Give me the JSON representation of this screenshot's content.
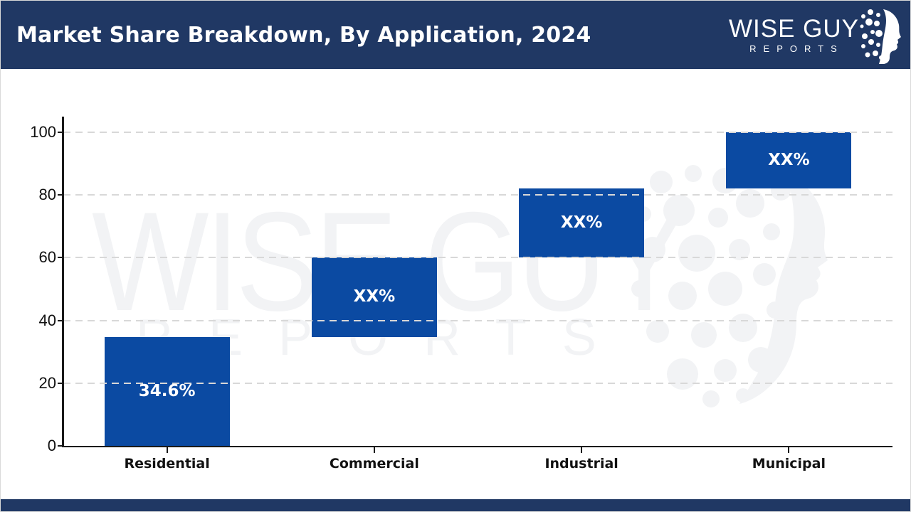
{
  "header": {
    "title": "Market Share Breakdown, By Application, 2024",
    "bg_color": "#203864",
    "logo": {
      "line1": "WISE GUY",
      "line2": "REPORTS"
    }
  },
  "watermark": {
    "line1": "WISE GUY",
    "line2": "REPORTS"
  },
  "chart_data": {
    "type": "bar",
    "subtype": "waterfall",
    "title": "Market Share Breakdown, By Application, 2024",
    "categories": [
      "Residential",
      "Commercial",
      "Industrial",
      "Municipal"
    ],
    "series": [
      {
        "name": "Market Share",
        "segments": [
          {
            "category": "Residential",
            "start": 0,
            "end": 34.6,
            "label": "34.6%"
          },
          {
            "category": "Commercial",
            "start": 34.6,
            "end": 60,
            "label": "XX%"
          },
          {
            "category": "Industrial",
            "start": 60,
            "end": 82,
            "label": "XX%"
          },
          {
            "category": "Municipal",
            "start": 82,
            "end": 100,
            "label": "XX%"
          }
        ]
      }
    ],
    "yticks": [
      0,
      20,
      40,
      60,
      80,
      100
    ],
    "ylim": [
      0,
      105
    ],
    "xlabel": "",
    "ylabel": "",
    "grid": "dashed-horizontal",
    "legend": "none",
    "bar_color": "#0b4aa2",
    "bar_label_color": "#ffffff",
    "axis_color": "#1a1a1a",
    "gridline_color": "#d8d8d8"
  },
  "footer": {
    "bg_color": "#203864"
  }
}
